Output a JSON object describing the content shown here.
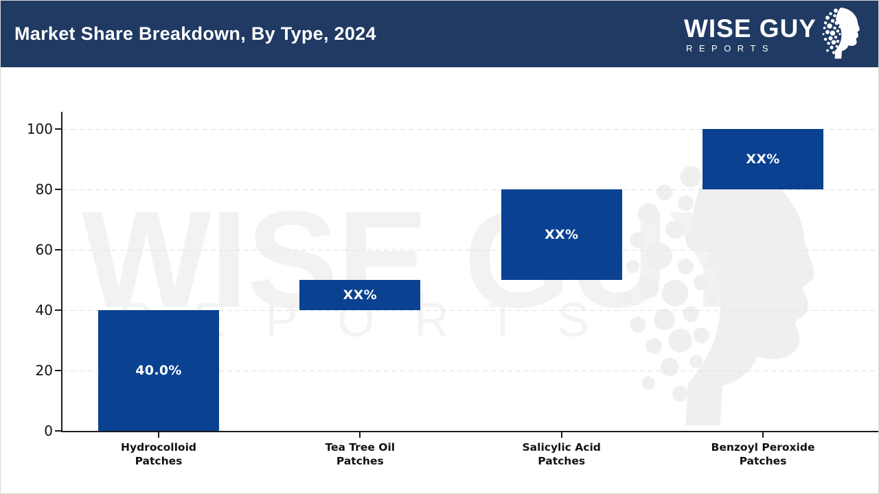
{
  "header": {
    "title": "Market Share Breakdown, By Type, 2024",
    "brand": {
      "name": "WISE GUY",
      "sub": "REPORTS"
    }
  },
  "watermark": {
    "word": "WISE GUY",
    "sub": "REPORTS"
  },
  "chart_data": {
    "type": "bar",
    "variant": "floating-segment-waterfall",
    "title": "Market Share Breakdown, By Type, 2024",
    "categories": [
      "Hydrocolloid Patches",
      "Tea Tree Oil Patches",
      "Salicylic Acid Patches",
      "Benzoyl Peroxide Patches"
    ],
    "category_label_lines": [
      [
        "Hydrocolloid",
        "Patches"
      ],
      [
        "Tea Tree Oil",
        "Patches"
      ],
      [
        "Salicylic Acid",
        "Patches"
      ],
      [
        "Benzoyl Peroxide",
        "Patches"
      ]
    ],
    "segments": [
      {
        "category": "Hydrocolloid Patches",
        "start": 0,
        "end": 40,
        "label": "40.0%"
      },
      {
        "category": "Tea Tree Oil Patches",
        "start": 40,
        "end": 50,
        "label": "XX%"
      },
      {
        "category": "Salicylic Acid Patches",
        "start": 50,
        "end": 80,
        "label": "XX%"
      },
      {
        "category": "Benzoyl Peroxide Patches",
        "start": 80,
        "end": 100,
        "label": "XX%"
      }
    ],
    "xlabel": "",
    "ylabel": "",
    "ylim": [
      0,
      100
    ],
    "yticks": [
      0,
      20,
      40,
      60,
      80,
      100
    ],
    "grid": {
      "horizontal": true,
      "style": "dashed"
    },
    "legend": "none",
    "colors": {
      "bar": "#0a4191",
      "bar_label": "#ffffff",
      "grid": "#e0e0e0",
      "axis": "#1a1a1a",
      "tick_label": "#111111",
      "header_bg": "#203a63",
      "header_text": "#ffffff",
      "watermark": "#f2f2f2",
      "background": "#ffffff"
    }
  }
}
